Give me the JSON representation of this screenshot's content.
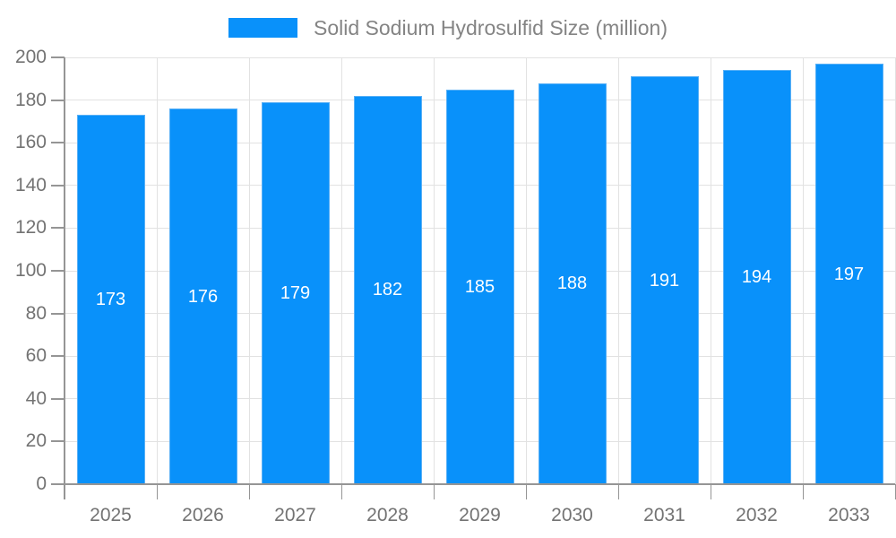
{
  "colors": {
    "bg": "#ffffff",
    "bar": "#0991fa",
    "bar_border": "#59b0f6",
    "bar_label": "#ffffff",
    "grid": "#e2e2e2",
    "axis": "#959595",
    "tick_label": "#737373",
    "legend_text": "#848484"
  },
  "chart_data": {
    "type": "bar",
    "title": "",
    "legend": "Solid Sodium Hydrosulfid Size (million)",
    "categories": [
      "2025",
      "2026",
      "2027",
      "2028",
      "2029",
      "2030",
      "2031",
      "2032",
      "2033"
    ],
    "values": [
      173,
      176,
      179,
      182,
      185,
      188,
      191,
      194,
      197
    ],
    "xlabel": "",
    "ylabel": "",
    "ylim": [
      0,
      200
    ],
    "ytick_step": 20,
    "yticks": [
      0,
      20,
      40,
      60,
      80,
      100,
      120,
      140,
      160,
      180,
      200
    ],
    "grid": true,
    "legend_position": "top-center",
    "value_label_position": "inside-middle"
  }
}
